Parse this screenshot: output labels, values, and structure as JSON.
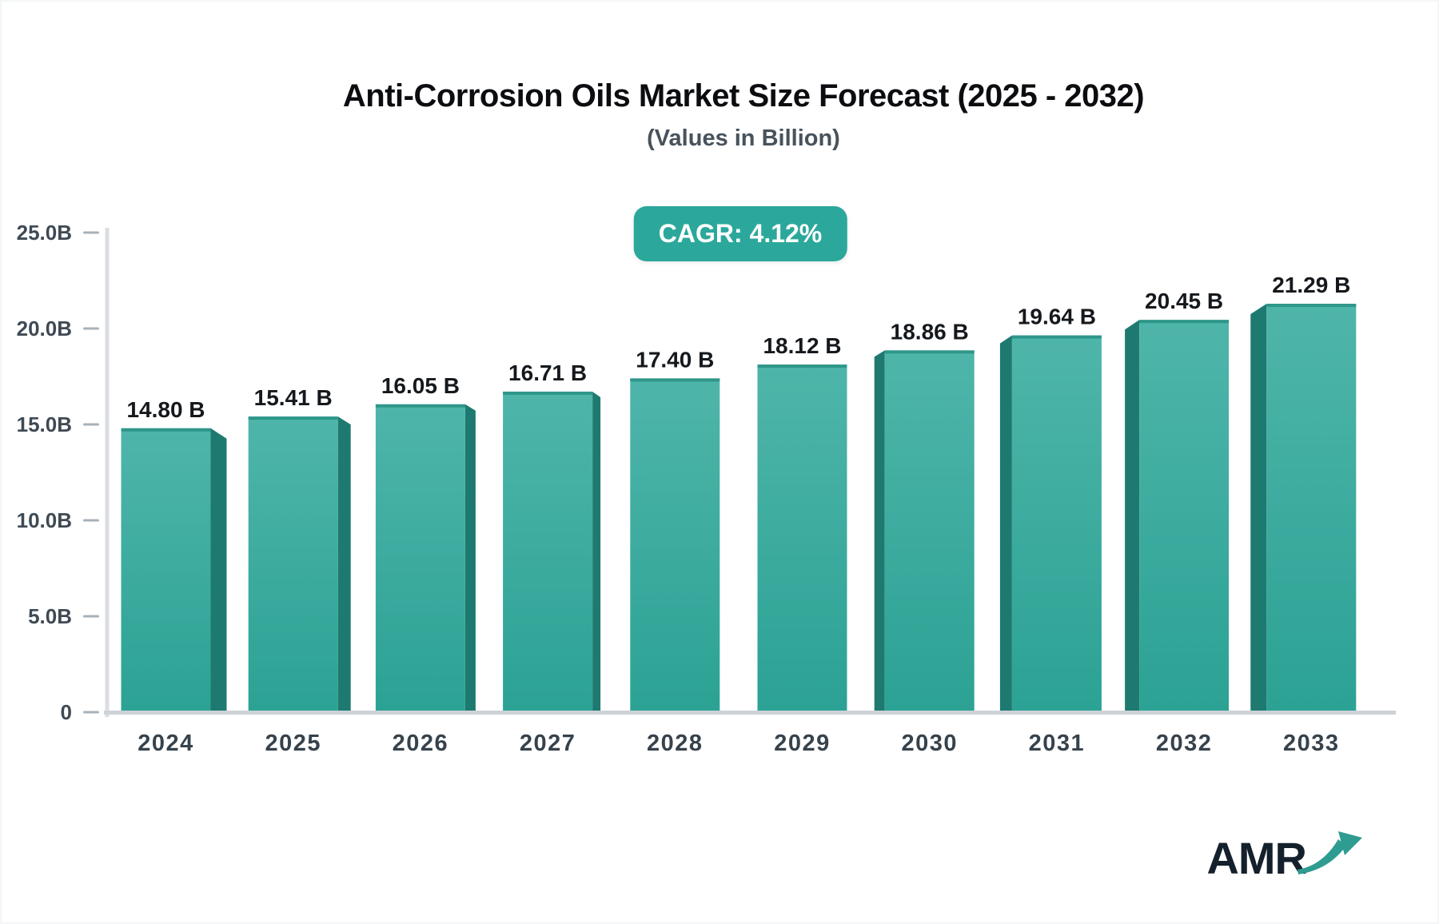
{
  "header": {
    "title": "Anti-Corrosion Oils Market Size Forecast (2025 - 2032)",
    "subtitle": "(Values in Billion)"
  },
  "badge": {
    "label": "CAGR: 4.12%",
    "bg_color": "#2BA89B",
    "text_color": "#FFFFFF"
  },
  "chart_data": {
    "type": "bar",
    "title": "Anti-Corrosion Oils Market Size Forecast (2025 - 2032)",
    "subtitle": "(Values in Billion)",
    "cagr_annotation": "CAGR: 4.12%",
    "categories": [
      "2024",
      "2025",
      "2026",
      "2027",
      "2028",
      "2029",
      "2030",
      "2031",
      "2032",
      "2033"
    ],
    "values": [
      14.8,
      15.41,
      16.05,
      16.71,
      17.4,
      18.12,
      18.86,
      19.64,
      20.45,
      21.29
    ],
    "value_labels": [
      "14.80 B",
      "15.41 B",
      "16.05 B",
      "16.71 B",
      "17.40 B",
      "18.12 B",
      "18.86 B",
      "19.64 B",
      "20.45 B",
      "21.29 B"
    ],
    "xlabel": "",
    "ylabel": "",
    "ylim": [
      0,
      25
    ],
    "ytick_values": [
      0,
      5,
      10,
      15,
      20,
      25
    ],
    "ytick_labels": [
      "0",
      "5.0B",
      "10.0B",
      "15.0B",
      "20.0B",
      "25.0B"
    ],
    "grid": false,
    "legend": false,
    "colors": {
      "bar_face_top": "#4FB5AA",
      "bar_face_bottom": "#2BA294",
      "bar_side": "#1E7A70",
      "bar_top_edge": "#2F968A",
      "y_axis_line": "#DADDE2",
      "x_baseline": "#CDD2D7",
      "tick_dash": "#A8B1B8",
      "ytick_label": "#3E4A54",
      "xtick_label": "#36424C",
      "value_label": "#15191D"
    }
  },
  "logo": {
    "text": "AMR",
    "text_color": "#14202B",
    "arrow_color": "#2F9C91"
  }
}
